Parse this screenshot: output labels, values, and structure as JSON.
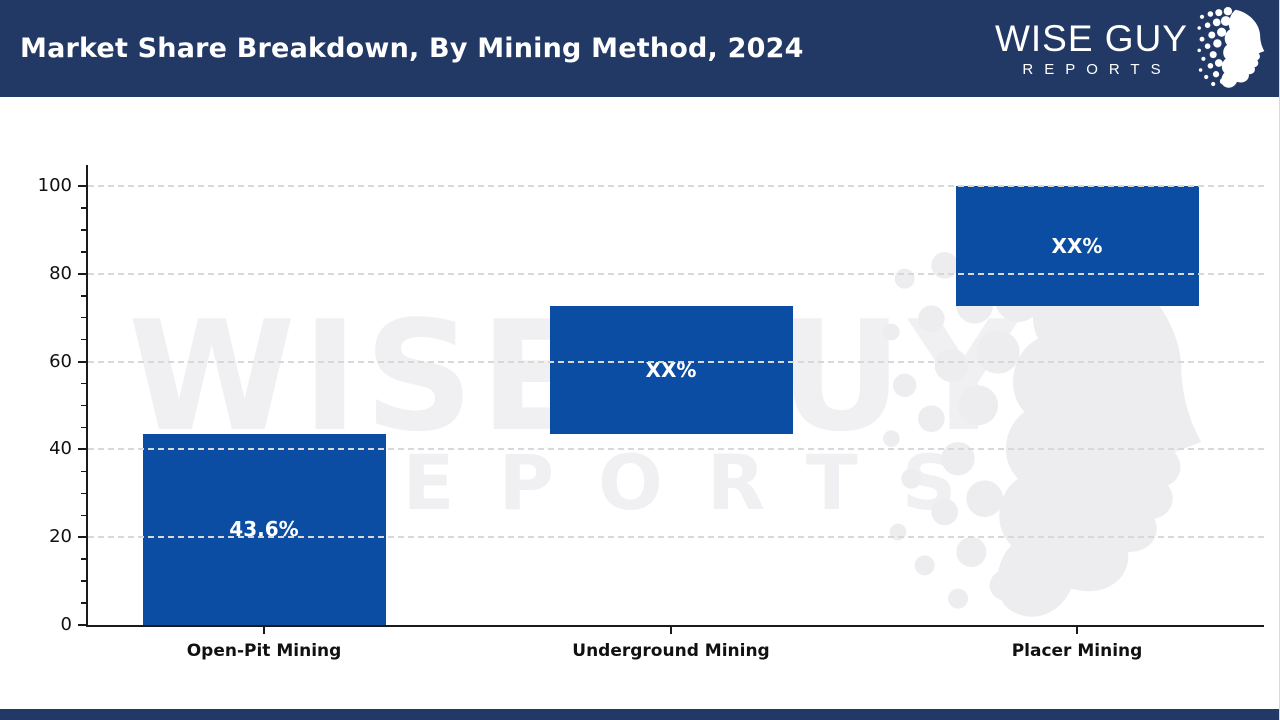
{
  "header": {
    "title": "Market Share Breakdown, By Mining Method, 2024",
    "logo": {
      "line1": "WISE GUY",
      "line2": "REPORTS"
    }
  },
  "watermark": {
    "line1": "WISE GUY",
    "line2": "REPORTS"
  },
  "chart_data": {
    "type": "bar",
    "subtype": "floating-waterfall",
    "title": "Market Share Breakdown, By Mining Method, 2024",
    "categories": [
      "Open-Pit Mining",
      "Underground Mining",
      "Placer Mining"
    ],
    "segments": [
      {
        "category": "Open-Pit Mining",
        "start": 0,
        "end": 43.6,
        "value_label": "43.6%"
      },
      {
        "category": "Underground Mining",
        "start": 43.6,
        "end": 72.6,
        "value_label": "XX%"
      },
      {
        "category": "Placer Mining",
        "start": 72.6,
        "end": 100,
        "value_label": "XX%"
      }
    ],
    "xlabel": "",
    "ylabel": "",
    "ylim": [
      0,
      100
    ],
    "yticks": [
      0,
      20,
      40,
      60,
      80,
      100
    ],
    "minor_tick_step": 5,
    "grid": "horizontal-dashed",
    "legend": "none",
    "bar_color": "#0b4da2",
    "value_label_color": "#ffffff"
  },
  "colors": {
    "header_bg": "#233965",
    "footer_bg": "#233965",
    "bar": "#0b4da2",
    "gridline": "#d8d8d8",
    "watermark": "#f0f0f3",
    "axis": "#1a1a1a"
  }
}
